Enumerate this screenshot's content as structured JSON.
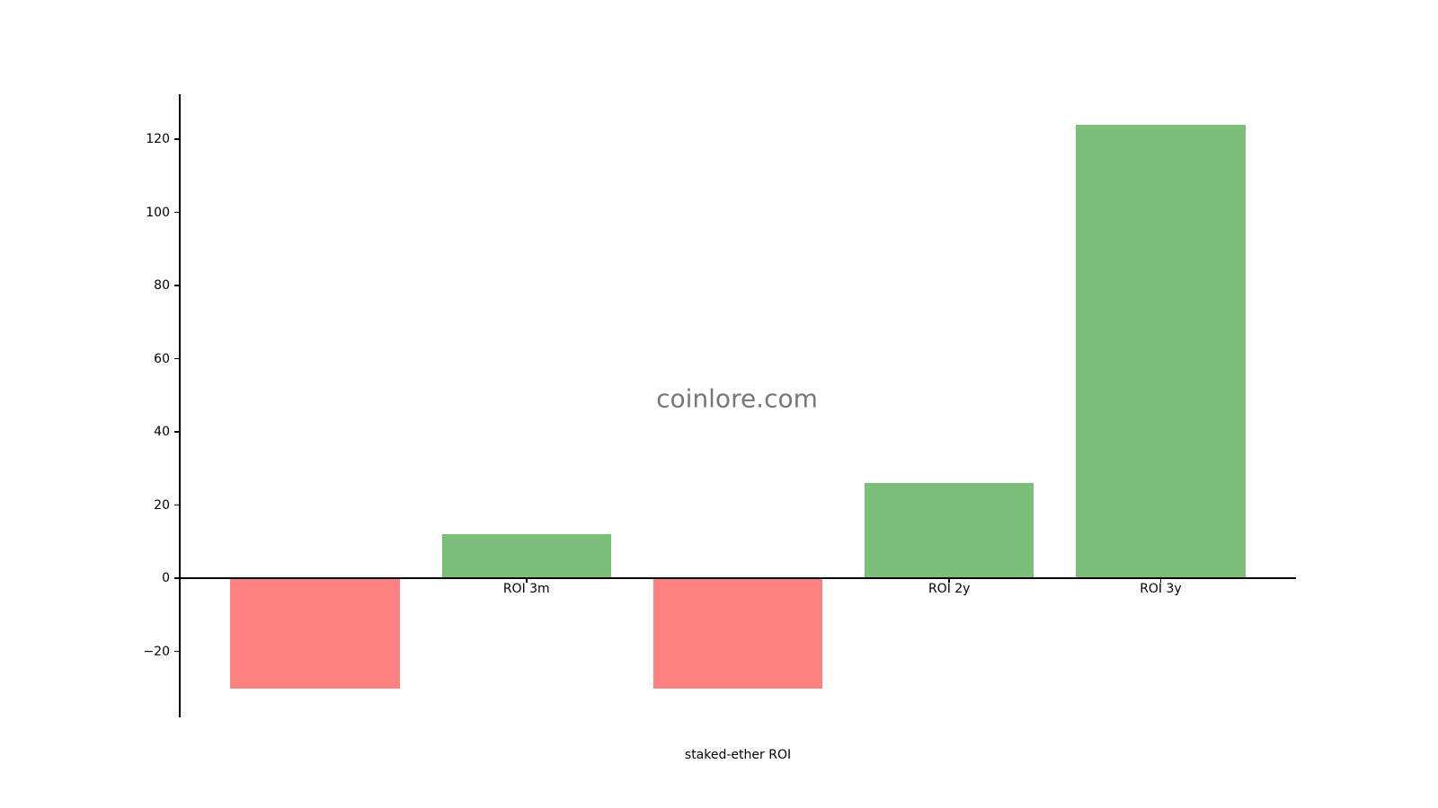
{
  "chart_data": {
    "type": "bar",
    "title": "",
    "xlabel": "staked-ether ROI",
    "ylabel": "",
    "categories": [
      "",
      "ROI 3m",
      "",
      "ROI 2y",
      "ROI 3y"
    ],
    "values": [
      -30,
      12,
      -30,
      26,
      124
    ],
    "bar_colors": {
      "positive": "#7dbe7a",
      "negative": "#fe8181"
    },
    "yticks": [
      -20,
      0,
      20,
      40,
      60,
      80,
      100,
      120
    ],
    "ylim": [
      -38,
      132.3
    ],
    "xlim": [
      -0.64,
      4.64
    ],
    "bar_width_fraction": 0.8,
    "grid": false,
    "legend": false,
    "axis_color": "#000000",
    "background_color": "#ffffff",
    "watermark": "coinlore.com"
  }
}
